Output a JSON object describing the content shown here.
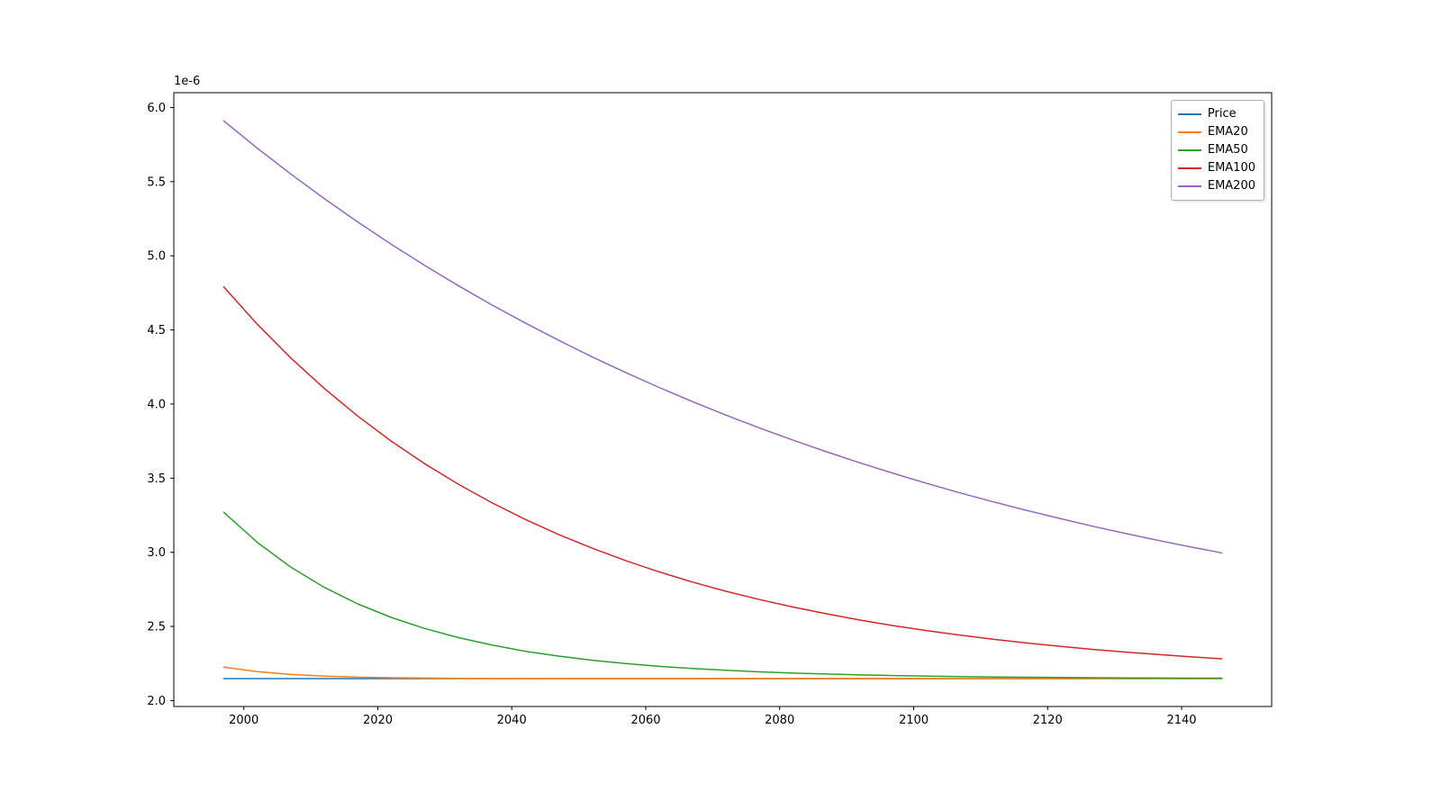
{
  "figure": {
    "background_color": "#ffffff",
    "axes_edge_color": "#000000"
  },
  "chart_data": {
    "type": "line",
    "title": "",
    "xlabel": "",
    "ylabel": "",
    "grid": false,
    "y_offset_label": "1e-6",
    "y_unit_scale": 1e-06,
    "xlim": [
      1989.55,
      2153.45
    ],
    "ylim": [
      1.96,
      6.1
    ],
    "x_ticks": [
      2000,
      2020,
      2040,
      2060,
      2080,
      2100,
      2120,
      2140
    ],
    "x_tick_labels": [
      "2000",
      "2020",
      "2040",
      "2060",
      "2080",
      "2100",
      "2120",
      "2140"
    ],
    "y_ticks": [
      2.0,
      2.5,
      3.0,
      3.5,
      4.0,
      4.5,
      5.0,
      5.5,
      6.0
    ],
    "y_tick_labels": [
      "2.0",
      "2.5",
      "3.0",
      "3.5",
      "4.0",
      "4.5",
      "5.0",
      "5.5",
      "6.0"
    ],
    "x": [
      1997,
      2002,
      2007,
      2012,
      2017,
      2022,
      2027,
      2032,
      2037,
      2042,
      2047,
      2052,
      2057,
      2062,
      2067,
      2072,
      2077,
      2082,
      2087,
      2092,
      2097,
      2102,
      2107,
      2112,
      2117,
      2122,
      2127,
      2132,
      2137,
      2142,
      2146
    ],
    "series": [
      {
        "name": "Price",
        "color": "#1f77b4",
        "values": [
          2.148,
          2.148,
          2.148,
          2.148,
          2.148,
          2.148,
          2.148,
          2.148,
          2.148,
          2.148,
          2.148,
          2.148,
          2.148,
          2.148,
          2.148,
          2.148,
          2.148,
          2.148,
          2.148,
          2.148,
          2.148,
          2.148,
          2.148,
          2.148,
          2.148,
          2.148,
          2.148,
          2.148,
          2.148,
          2.148,
          2.148
        ]
      },
      {
        "name": "EMA20",
        "color": "#ff7f0e",
        "values": [
          2.225,
          2.195,
          2.176,
          2.165,
          2.158,
          2.154,
          2.152,
          2.15,
          2.149,
          2.149,
          2.148,
          2.148,
          2.148,
          2.148,
          2.148,
          2.148,
          2.148,
          2.148,
          2.148,
          2.148,
          2.148,
          2.148,
          2.148,
          2.148,
          2.148,
          2.148,
          2.148,
          2.148,
          2.148,
          2.148,
          2.148
        ]
      },
      {
        "name": "EMA50",
        "color": "#2ca02c",
        "values": [
          3.27,
          3.067,
          2.9,
          2.764,
          2.652,
          2.561,
          2.486,
          2.425,
          2.375,
          2.333,
          2.3,
          2.272,
          2.25,
          2.231,
          2.216,
          2.204,
          2.194,
          2.185,
          2.179,
          2.173,
          2.169,
          2.165,
          2.162,
          2.159,
          2.157,
          2.156,
          2.154,
          2.153,
          2.152,
          2.151,
          2.151
        ]
      },
      {
        "name": "EMA100",
        "color": "#d62728",
        "values": [
          4.79,
          4.539,
          4.311,
          4.105,
          3.919,
          3.75,
          3.598,
          3.46,
          3.335,
          3.222,
          3.12,
          3.028,
          2.944,
          2.868,
          2.799,
          2.737,
          2.681,
          2.631,
          2.585,
          2.543,
          2.505,
          2.472,
          2.441,
          2.413,
          2.388,
          2.365,
          2.344,
          2.326,
          2.309,
          2.293,
          2.282
        ]
      },
      {
        "name": "EMA200",
        "color": "#9467bd",
        "values": [
          5.91,
          5.726,
          5.552,
          5.386,
          5.228,
          5.078,
          4.935,
          4.799,
          4.67,
          4.547,
          4.43,
          4.318,
          4.213,
          4.112,
          4.016,
          3.925,
          3.838,
          3.756,
          3.678,
          3.603,
          3.532,
          3.464,
          3.4,
          3.339,
          3.281,
          3.226,
          3.173,
          3.123,
          3.076,
          3.031,
          2.996
        ]
      }
    ],
    "legend": {
      "position": "upper right",
      "labels": [
        "Price",
        "EMA20",
        "EMA50",
        "EMA100",
        "EMA200"
      ]
    }
  }
}
